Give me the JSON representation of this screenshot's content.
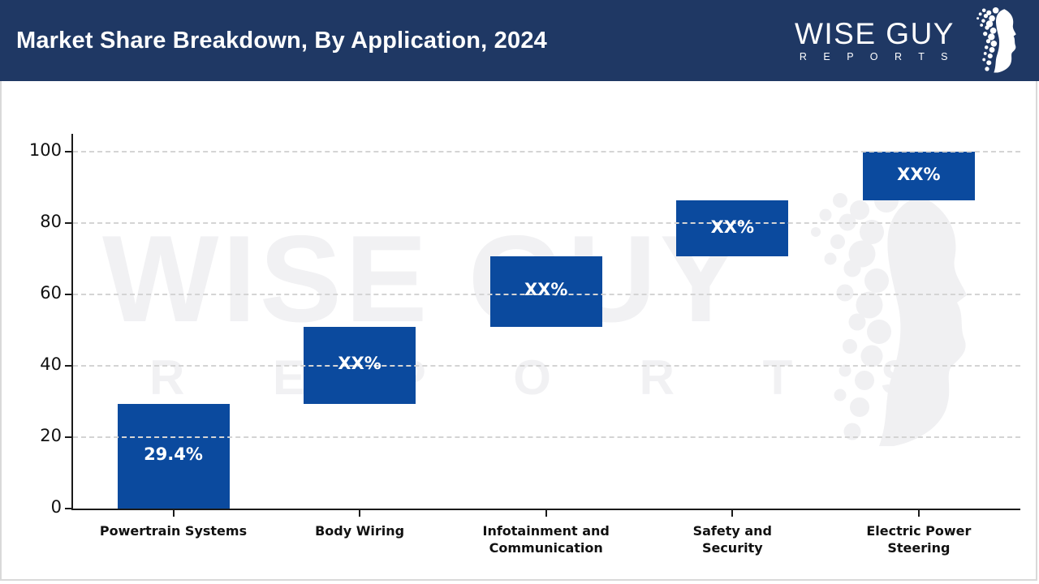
{
  "header": {
    "title": "Market Share Breakdown, By Application, 2024",
    "logo": {
      "wordmark": "WISE GUY",
      "subtext": "R E P O R T S"
    }
  },
  "watermark": {
    "wordmark": "WISE GUY",
    "subtext": "R E P O R T S"
  },
  "chart_data": {
    "type": "bar",
    "subtype": "waterfall",
    "title": "Market Share Breakdown, By Application, 2024",
    "categories": [
      "Powertrain Systems",
      "Body Wiring",
      "Infotainment and Communication",
      "Safety and Security",
      "Electric Power Steering"
    ],
    "category_display": [
      "Powertrain Systems",
      "Body Wiring",
      "Infotainment and\nCommunication",
      "Safety and\nSecurity",
      "Electric Power\nSteering"
    ],
    "bars": [
      {
        "category": "Powertrain Systems",
        "start": 0,
        "end": 29.4,
        "value_label": "29.4%"
      },
      {
        "category": "Body Wiring",
        "start": 29.4,
        "end": 51.0,
        "value_label": "XX%"
      },
      {
        "category": "Infotainment and Communication",
        "start": 51.0,
        "end": 70.6,
        "value_label": "XX%"
      },
      {
        "category": "Safety and Security",
        "start": 70.6,
        "end": 86.3,
        "value_label": "XX%"
      },
      {
        "category": "Electric Power Steering",
        "start": 86.3,
        "end": 100.0,
        "value_label": "XX%"
      }
    ],
    "yticks": [
      0,
      20,
      40,
      60,
      80,
      100
    ],
    "ylim": [
      0,
      105
    ],
    "xlabel": "",
    "ylabel": "",
    "legend": "none",
    "grid": "horizontal-dashed",
    "colors": {
      "bar": "#0b4a9e",
      "bar_label": "#ffffff",
      "axis": "#1a1a1a",
      "grid": "#d4d4d4",
      "header_bg": "#1f3864",
      "watermark": "#f1f1f3"
    }
  }
}
